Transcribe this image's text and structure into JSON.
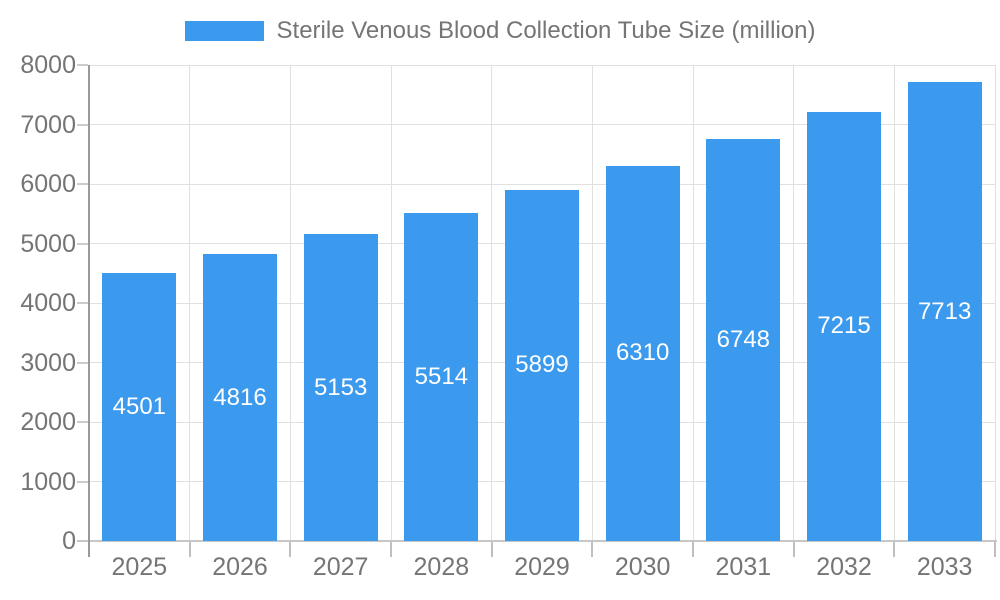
{
  "legend": {
    "label": "Sterile Venous Blood Collection Tube Size (million)"
  },
  "chart_data": {
    "type": "bar",
    "title": "Sterile Venous Blood Collection Tube Size (million)",
    "categories": [
      "2025",
      "2026",
      "2027",
      "2028",
      "2029",
      "2030",
      "2031",
      "2032",
      "2033"
    ],
    "values": [
      4501,
      4816,
      5153,
      5514,
      5899,
      6310,
      6748,
      7215,
      7713
    ],
    "series": [
      {
        "name": "Sterile Venous Blood Collection Tube Size (million)",
        "values": [
          4501,
          4816,
          5153,
          5514,
          5899,
          6310,
          6748,
          7215,
          7713
        ]
      }
    ],
    "xlabel": "",
    "ylabel": "",
    "ylim": [
      0,
      8000
    ],
    "y_tick_step": 1000,
    "y_tick_labels": [
      "0",
      "1000",
      "2000",
      "3000",
      "4000",
      "5000",
      "6000",
      "7000",
      "8000"
    ],
    "grid": true,
    "legend_position": "top",
    "value_labels_shown": true,
    "colors": {
      "bar": "#3B99EE",
      "value_label": "#FFFFFF",
      "axis_text": "#757575",
      "gridline": "#E0E0E0",
      "axis_line": "#999999"
    }
  }
}
